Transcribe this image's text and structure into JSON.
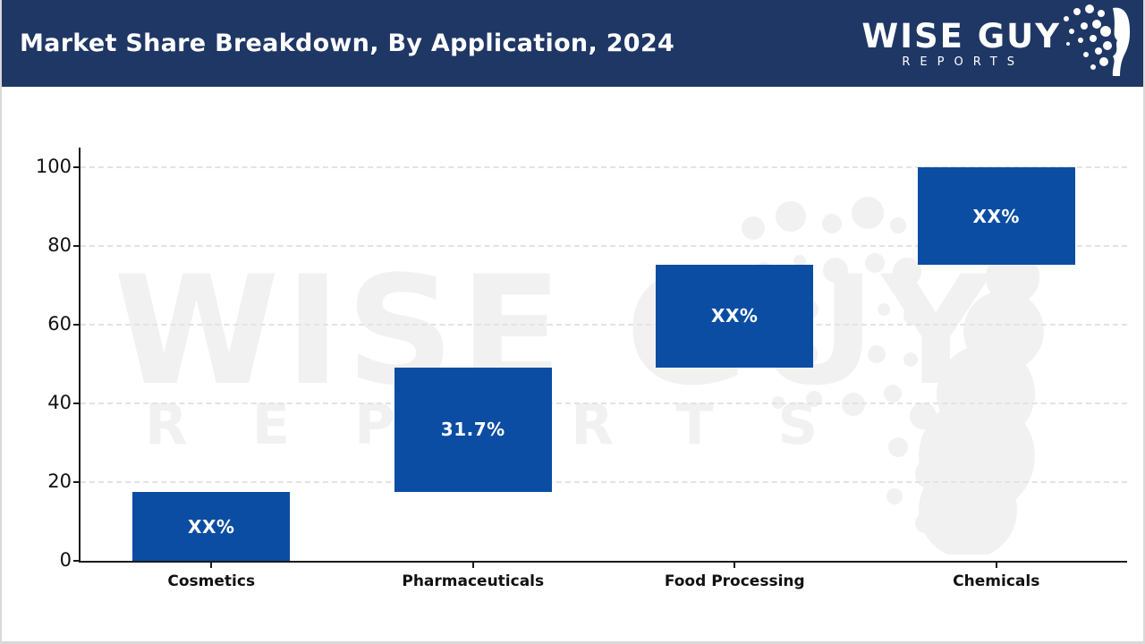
{
  "header": {
    "title": "Market Share Breakdown, By Application, 2024"
  },
  "logo": {
    "line1": "WISE GUY",
    "line2": "REPORTS",
    "face_icon": "dotted-head-profile"
  },
  "watermark": {
    "line1": "WISE GUY",
    "line2": "REPORTS",
    "face_icon": "dotted-head-profile"
  },
  "colors": {
    "header_bg": "#1f3765",
    "bar": "#0b4da2",
    "bar_label": "#ffffff",
    "grid": "#e3e3e3",
    "axis": "#1a1a1a",
    "watermark": "#f1f1f1"
  },
  "chart_data": {
    "type": "bar",
    "subtype": "floating-waterfall",
    "title": "Market Share Breakdown, By Application, 2024",
    "categories": [
      "Cosmetics",
      "Pharmaceuticals",
      "Food Processing",
      "Chemicals"
    ],
    "segments": [
      {
        "category": "Cosmetics",
        "start": 0,
        "end": 17.5,
        "height": 17.5,
        "label": "XX%"
      },
      {
        "category": "Pharmaceuticals",
        "start": 17.5,
        "end": 49.2,
        "height": 31.7,
        "label": "31.7%"
      },
      {
        "category": "Food Processing",
        "start": 49.2,
        "end": 75.2,
        "height": 26.0,
        "label": "XX%"
      },
      {
        "category": "Chemicals",
        "start": 75.2,
        "end": 100,
        "height": 24.8,
        "label": "XX%"
      }
    ],
    "yticks": [
      0,
      20,
      40,
      60,
      80,
      100
    ],
    "ylim": [
      0,
      105
    ],
    "xlabel": "",
    "ylabel": "",
    "grid": "horizontal-dashed",
    "legend": false
  }
}
